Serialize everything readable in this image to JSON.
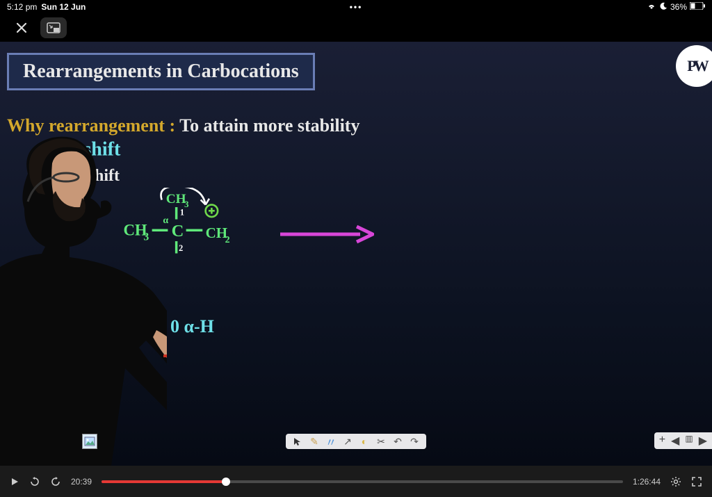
{
  "status": {
    "time": "5:12 pm",
    "date": "Sun 12 Jun",
    "battery": "36%"
  },
  "video": {
    "title": "Rearrangements in Carbocations",
    "subtitle_yellow": "Why rearrangement :",
    "subtitle_white": " To attain more stability",
    "logo_text": "PW",
    "handwriting": {
      "shift_label": "shift",
      "yl_shift": "yl Shift",
      "alpha_h": "0 α-H"
    },
    "chemistry": {
      "ch3_left": "CH₃",
      "ch3_top": "CH₃",
      "center_c": "C",
      "ch2_right": "CH₂",
      "alpha_label": "α",
      "num2": "2",
      "num1": "1",
      "colors": {
        "green": "#5fe87a",
        "cyan": "#6ee0e8",
        "white": "#ffffff",
        "plus_bg": "#6fd84a"
      }
    },
    "arrow_color": "#d846d8"
  },
  "player": {
    "current": "20:39",
    "total": "1:26:44",
    "progress_pct": 23.8
  },
  "colors": {
    "slide_bg": "#0d1322",
    "title_border": "#6a7db5",
    "title_bg": "#1e2a4a",
    "yellow_text": "#d4a82c"
  }
}
